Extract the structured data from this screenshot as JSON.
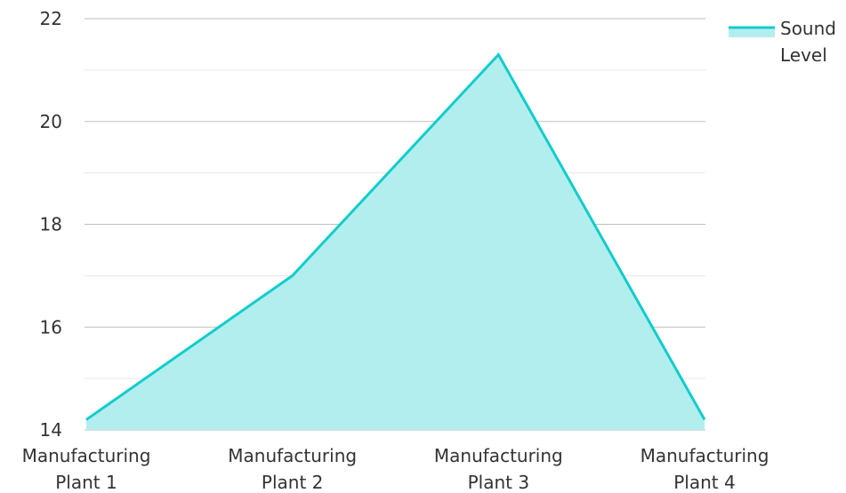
{
  "chart_data": {
    "type": "area",
    "categories": [
      "Manufacturing Plant 1",
      "Manufacturing Plant 2",
      "Manufacturing Plant 3",
      "Manufacturing Plant 4"
    ],
    "category_lines": [
      [
        "Manufacturing",
        "Plant 1"
      ],
      [
        "Manufacturing",
        "Plant 2"
      ],
      [
        "Manufacturing",
        "Plant 3"
      ],
      [
        "Manufacturing",
        "Plant 4"
      ]
    ],
    "series": [
      {
        "name": "Sound Level",
        "name_lines": [
          "Sound",
          "Level"
        ],
        "values": [
          14.2,
          17.0,
          21.3,
          14.2
        ]
      }
    ],
    "title": "",
    "xlabel": "",
    "ylabel": "",
    "ylim": [
      14,
      22
    ],
    "yticks": [
      14,
      16,
      18,
      20,
      22
    ],
    "grid": true,
    "legend": "top-right",
    "colors": {
      "line": "#12CCCC",
      "fill": "#B2EEEE",
      "grid_major": "#bdbdbd",
      "grid_minor": "#e6e6e6",
      "text": "#333333"
    }
  }
}
